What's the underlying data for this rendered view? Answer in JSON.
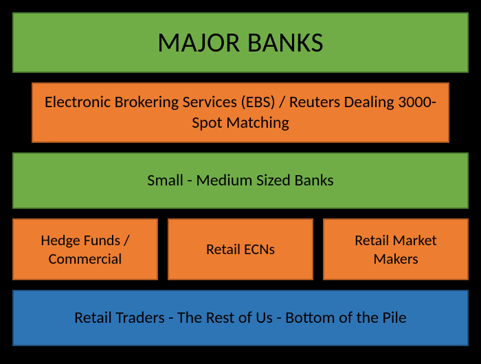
{
  "colors": {
    "green_fill": "#70ad47",
    "green_border": "#507e32",
    "orange_fill": "#ed7d31",
    "orange_border": "#ae5a21",
    "blue_fill": "#2e75b6",
    "blue_border": "#1f4e79",
    "background": "#000000",
    "text": "#000000"
  },
  "tiers": {
    "t1": {
      "label": "MAJOR BANKS",
      "fill": "#70ad47",
      "border": "#507e32"
    },
    "t2": {
      "label": "Electronic Brokering Services (EBS) / Reuters Dealing 3000-Spot Matching",
      "fill": "#ed7d31",
      "border": "#ae5a21"
    },
    "t3": {
      "label": "Small - Medium Sized Banks",
      "fill": "#70ad47",
      "border": "#507e32"
    },
    "t4a": {
      "label": "Hedge Funds / Commercial",
      "fill": "#ed7d31",
      "border": "#ae5a21"
    },
    "t4b": {
      "label": "Retail ECNs",
      "fill": "#ed7d31",
      "border": "#ae5a21"
    },
    "t4c": {
      "label": "Retail Market Makers",
      "fill": "#ed7d31",
      "border": "#ae5a21"
    },
    "t5": {
      "label": "Retail Traders - The Rest of Us - Bottom of the Pile",
      "fill": "#2e75b6",
      "border": "#1f4e79"
    }
  }
}
